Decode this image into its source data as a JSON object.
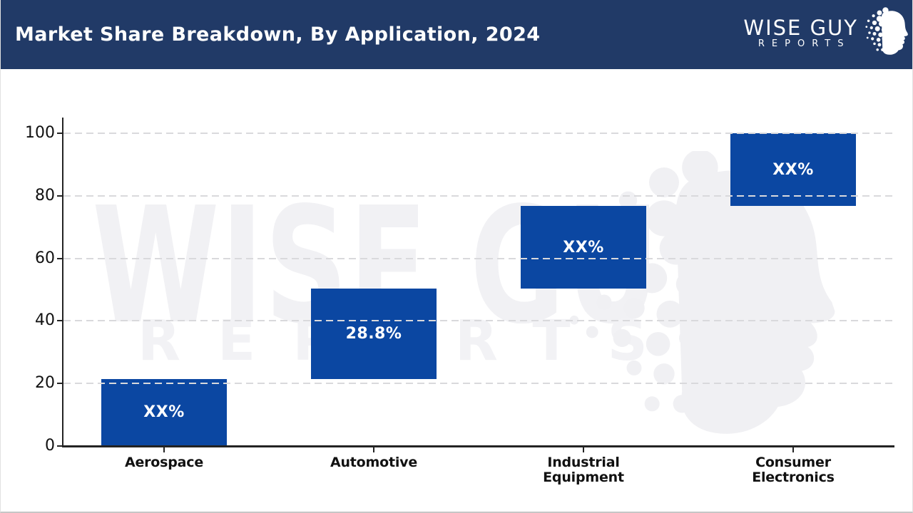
{
  "header": {
    "title": "Market Share Breakdown, By Application, 2024",
    "background": "#213a67",
    "logo": {
      "line1": "WISE GUY",
      "line2": "REPORTS",
      "face_icon": "dotted-face-profile"
    }
  },
  "watermark": {
    "line1": "WISE GUY",
    "line2": "REPORTS",
    "face_icon": "dotted-face-profile"
  },
  "colors": {
    "header_bg": "#213a67",
    "bar_fill": "#0b47a2",
    "bar_label_text": "#ffffff",
    "gridline": "#d9d9dc",
    "axis": "#232323",
    "watermark": "#f1f1f4",
    "title_text": "#ffffff"
  },
  "chart_data": {
    "type": "waterfall",
    "title": "Market Share Breakdown, By Application, 2024",
    "xlabel": "",
    "ylabel": "",
    "ylim": [
      0,
      105
    ],
    "y_ticks": [
      0,
      20,
      40,
      60,
      80,
      100
    ],
    "grid": "horizontal dashed",
    "legend": "none",
    "categories": [
      "Aerospace",
      "Automotive",
      "Industrial Equipment",
      "Consumer Electronics"
    ],
    "category_lines": [
      [
        "Aerospace"
      ],
      [
        "Automotive"
      ],
      [
        "Industrial",
        "Equipment"
      ],
      [
        "Consumer",
        "Electronics"
      ]
    ],
    "segments": [
      {
        "category": "Aerospace",
        "start": 0,
        "end": 21.5,
        "value": 21.5,
        "label": "XX%"
      },
      {
        "category": "Automotive",
        "start": 21.5,
        "end": 50.3,
        "value": 28.8,
        "label": "28.8%"
      },
      {
        "category": "Industrial Equipment",
        "start": 50.3,
        "end": 76.7,
        "value": 26.4,
        "label": "XX%"
      },
      {
        "category": "Consumer Electronics",
        "start": 76.7,
        "end": 100,
        "value": 23.3,
        "label": "XX%"
      }
    ]
  }
}
